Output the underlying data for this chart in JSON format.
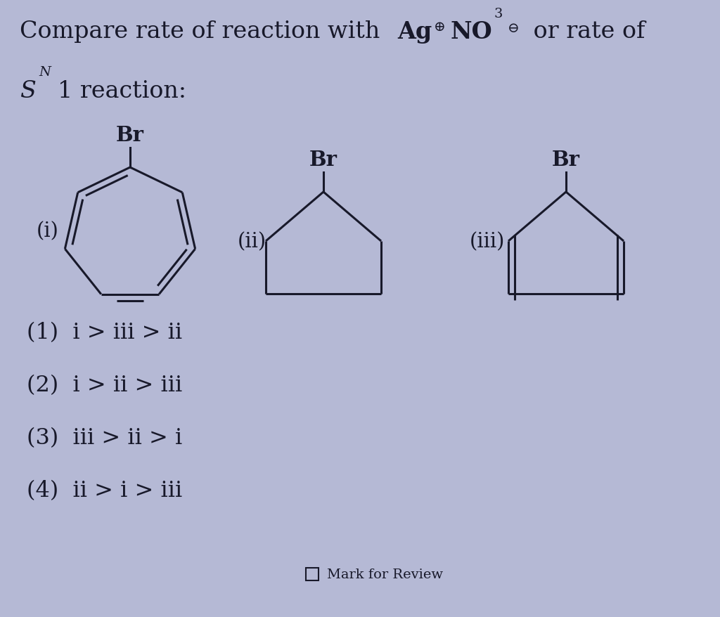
{
  "bg_color": "#b5b9d5",
  "text_color": "#18192a",
  "options": [
    "(1)  i > iii > ii",
    "(2)  i > ii > iii",
    "(3)  iii > ii > i",
    "(4)  ii > i > iii"
  ],
  "mark_for_review": "Mark for Review",
  "lw": 2.2
}
